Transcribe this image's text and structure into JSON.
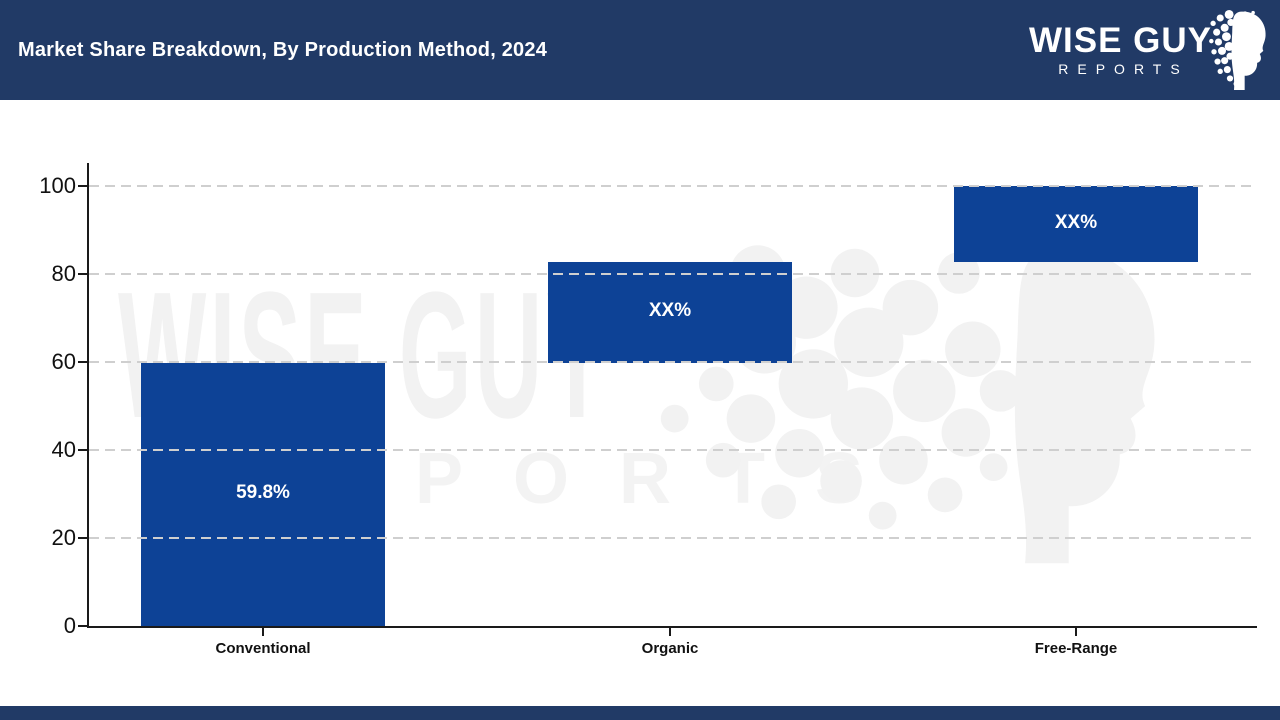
{
  "header": {
    "title": "Market Share Breakdown, By Production Method, 2024",
    "logo": {
      "line1": "WISE GUY",
      "line2": "REPORTS",
      "icon": "head-profile-dots-icon"
    }
  },
  "watermark": {
    "line1": "WISE GUY",
    "line2": "REPORTS",
    "icon": "head-profile-dots-icon"
  },
  "colors": {
    "header_bg": "#213a66",
    "footer_bg": "#213a66",
    "bar_fill": "#0d4296",
    "bar_label_text": "#ffffff",
    "axis": "#1a1a1a",
    "tick_label": "#111111",
    "gridline": "#cfcfcf",
    "watermark": "#f2f2f2",
    "background": "#ffffff"
  },
  "chart_data": {
    "type": "bar",
    "subtype": "stepped-waterfall",
    "title": "Market Share Breakdown, By Production Method, 2024",
    "categories": [
      "Conventional",
      "Organic",
      "Free-Range"
    ],
    "segments": [
      {
        "category": "Conventional",
        "start": 0,
        "end": 59.8,
        "label": "59.8%"
      },
      {
        "category": "Organic",
        "start": 59.8,
        "end": 82.8,
        "label": "XX%"
      },
      {
        "category": "Free-Range",
        "start": 82.8,
        "end": 100,
        "label": "XX%"
      }
    ],
    "xlabel": "",
    "ylabel": "",
    "yticks": [
      0,
      20,
      40,
      60,
      80,
      100
    ],
    "ylim": [
      0,
      105
    ],
    "grid": "horizontal-dashed",
    "legend": "none",
    "bar_color": "#0d4296"
  }
}
